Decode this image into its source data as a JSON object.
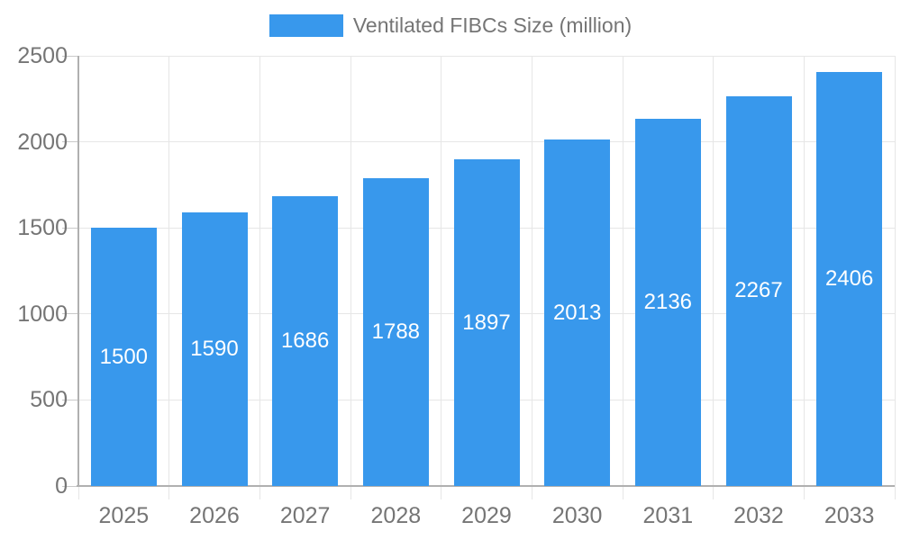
{
  "legend": {
    "label": "Ventilated FIBCs Size (million)"
  },
  "chart_data": {
    "type": "bar",
    "title": "",
    "xlabel": "",
    "ylabel": "",
    "categories": [
      "2025",
      "2026",
      "2027",
      "2028",
      "2029",
      "2030",
      "2031",
      "2032",
      "2033"
    ],
    "series": [
      {
        "name": "Ventilated FIBCs Size (million)",
        "values": [
          1500,
          1590,
          1686,
          1788,
          1897,
          2013,
          2136,
          2267,
          2406
        ]
      }
    ],
    "value_labels_shown": true,
    "ylim": [
      0,
      2500
    ],
    "yticks": [
      0,
      500,
      1000,
      1500,
      2000,
      2500
    ],
    "grid": true,
    "legend_position": "top-center",
    "colors": {
      "bar": "#3898EC",
      "grid": "#E6E6E6",
      "axis": "#B0B0B0",
      "tick": "#C9C9C9",
      "text": "#757575",
      "value_label": "#FFFFFF"
    }
  }
}
